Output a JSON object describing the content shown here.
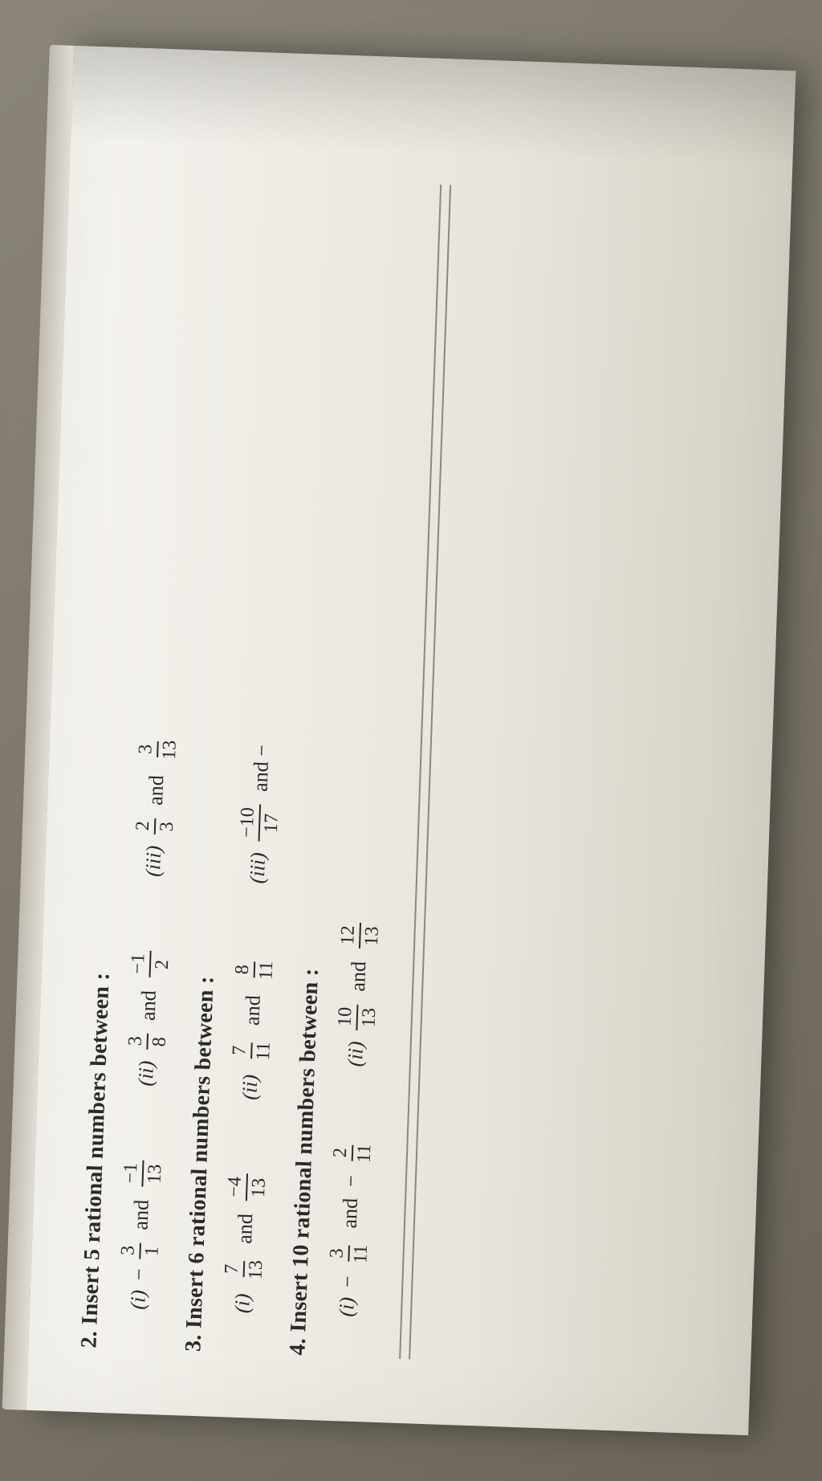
{
  "questions": [
    {
      "number": "2.",
      "text": "Insert 5 rational numbers between :",
      "options": [
        {
          "label": "(i)",
          "a_num": "3",
          "a_den": "1",
          "a_neg": true,
          "b_num": "−1",
          "b_den": "13"
        },
        {
          "label": "(ii)",
          "a_num": "3",
          "a_den": "8",
          "b_num": "−1",
          "b_den": "2"
        },
        {
          "label": "(iii)",
          "a_num": "2",
          "a_den": "3",
          "b_num": "3",
          "b_den": "13"
        }
      ]
    },
    {
      "number": "3.",
      "text": "Insert 6 rational numbers between :",
      "options": [
        {
          "label": "(i)",
          "a_num": "7",
          "a_den": "13",
          "b_num": "−4",
          "b_den": "13"
        },
        {
          "label": "(ii)",
          "a_num": "7",
          "a_den": "11",
          "b_num": "8",
          "b_den": "11"
        },
        {
          "label": "(iii)",
          "a_num": "−10",
          "a_den": "17",
          "b_trail": "and −"
        }
      ]
    },
    {
      "number": "4.",
      "text": "Insert 10 rational numbers between :",
      "options": [
        {
          "label": "(i)",
          "a_num": "3",
          "a_den": "11",
          "a_neg": true,
          "b_num": "2",
          "b_den": "11",
          "b_neg": true
        },
        {
          "label": "(ii)",
          "a_num": "10",
          "a_den": "13",
          "b_num": "12",
          "b_den": "13"
        }
      ]
    }
  ],
  "conj": "and"
}
